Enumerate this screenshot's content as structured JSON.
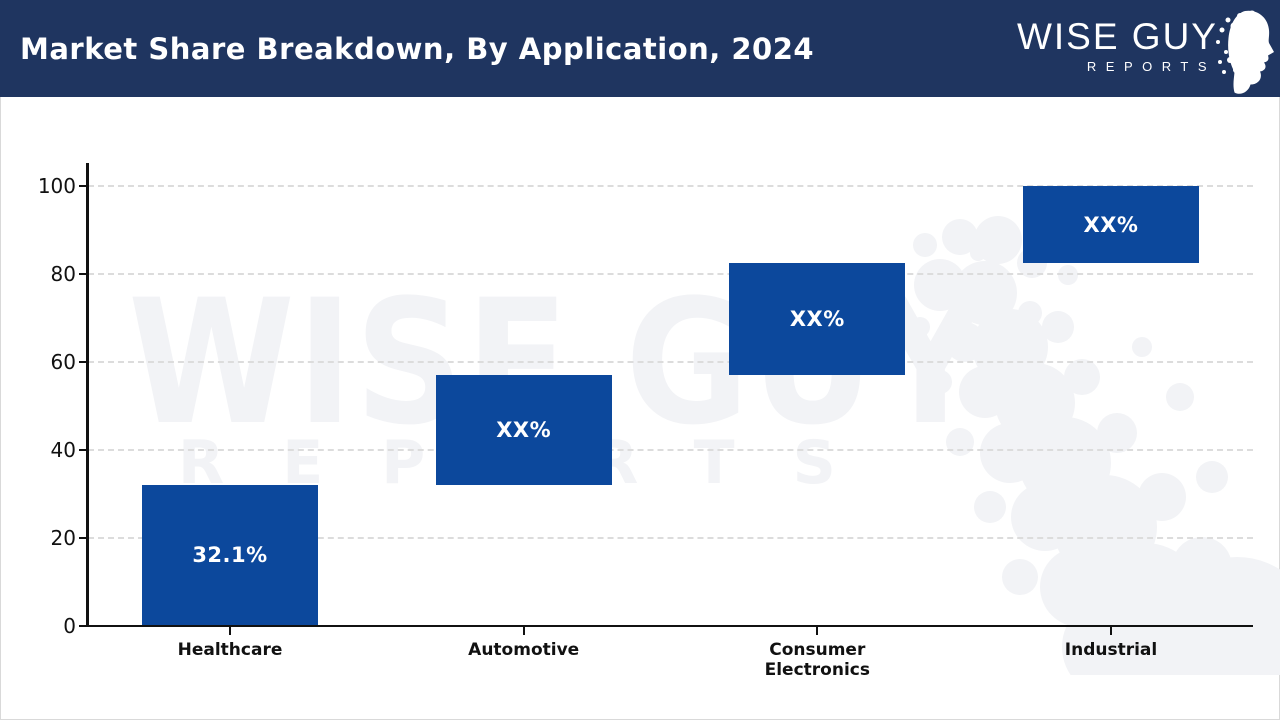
{
  "header": {
    "title": "Market Share Breakdown, By Application, 2024",
    "logo": {
      "name": "WISE GUY",
      "sub": "REPORTS"
    }
  },
  "watermark": {
    "line1": "WISE GUY",
    "line2": "REPORTS"
  },
  "colors": {
    "header_bg": "#1f3560",
    "title_color": "#ffffff",
    "bar_color": "#0c489c",
    "bar_label_color": "#ffffff",
    "grid_color": "#dcdcdc",
    "axis_color": "#111111",
    "watermark_color": "#f2f3f6"
  },
  "chart_data": {
    "type": "bar",
    "subtype": "waterfall",
    "title": "Market Share Breakdown, By Application, 2024",
    "categories": [
      "Healthcare",
      "Automotive",
      "Consumer Electronics",
      "Industrial"
    ],
    "segments": [
      {
        "category": "Healthcare",
        "start": 0,
        "end": 32.1,
        "label": "32.1%"
      },
      {
        "category": "Automotive",
        "start": 32.1,
        "end": 57.1,
        "label": "XX%"
      },
      {
        "category": "Consumer Electronics",
        "start": 57.1,
        "end": 82.4,
        "label": "XX%"
      },
      {
        "category": "Industrial",
        "start": 82.4,
        "end": 100,
        "label": "XX%"
      }
    ],
    "y_ticks": [
      0,
      20,
      40,
      60,
      80,
      100
    ],
    "ylim": [
      0,
      105
    ],
    "xlabel": "",
    "ylabel": "",
    "grid": true,
    "legend": "none",
    "bar_color": "#0c489c"
  }
}
